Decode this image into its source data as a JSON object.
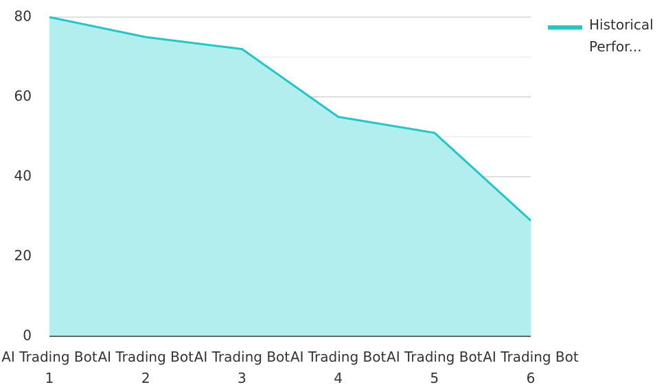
{
  "chart_data": {
    "type": "area",
    "categories": [
      "AI Trading Bot 1",
      "AI Trading Bot 2",
      "AI Trading Bot 3",
      "AI Trading Bot 4",
      "AI Trading Bot 5",
      "AI Trading Bot 6"
    ],
    "series": [
      {
        "name": "Historical Perfor...",
        "color": "#1fc8c8",
        "fill": "#b2eeee",
        "values": [
          80,
          75,
          72,
          55,
          51,
          29
        ]
      }
    ],
    "ylim": [
      0,
      80
    ],
    "yticks": [
      0,
      20,
      40,
      60,
      80
    ],
    "minor_yticks": [
      10,
      30,
      50,
      70
    ],
    "grid": true,
    "legend": "right"
  }
}
